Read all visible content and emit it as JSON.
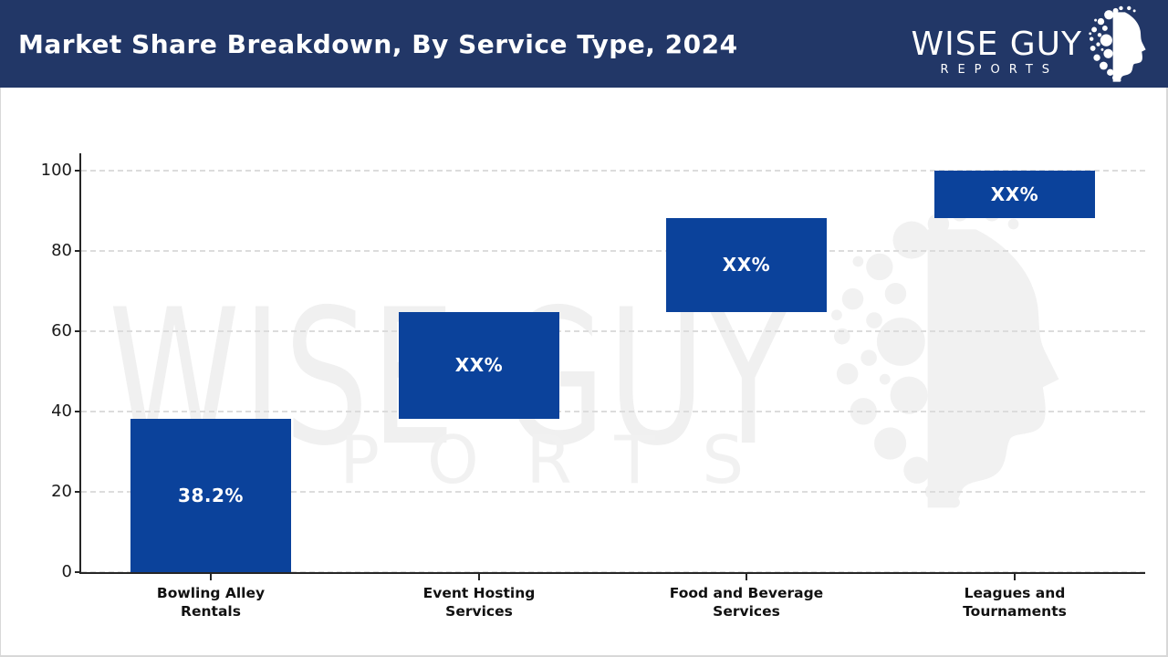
{
  "header": {
    "title": "Market Share Breakdown, By Service Type, 2024",
    "brand": {
      "name": "WISE GUY",
      "sub": "REPORTS"
    }
  },
  "watermark": {
    "line1": "WISE GUY",
    "line2": "REPORTS"
  },
  "colors": {
    "header_bg": "#223767",
    "bar": "#0b429b",
    "grid": "#dcdcdc",
    "axis": "#262626",
    "watermark": "#f0f0f0"
  },
  "chart_data": {
    "type": "bar",
    "subtype": "waterfall",
    "title": "Market Share Breakdown, By Service Type, 2024",
    "categories": [
      "Bowling Alley\nRentals",
      "Event Hosting\nServices",
      "Food and Beverage\nServices",
      "Leagues and\nTournaments"
    ],
    "segments": [
      {
        "label": "38.2%",
        "start": 0,
        "end": 38.2
      },
      {
        "label": "XX%",
        "start": 38.2,
        "end": 64.8
      },
      {
        "label": "XX%",
        "start": 64.8,
        "end": 88.2
      },
      {
        "label": "XX%",
        "start": 88.2,
        "end": 100
      }
    ],
    "yticks": [
      0,
      20,
      40,
      60,
      80,
      100
    ],
    "ylim": [
      0,
      104
    ],
    "grid": "dashed-horizontal",
    "legend": "none"
  }
}
